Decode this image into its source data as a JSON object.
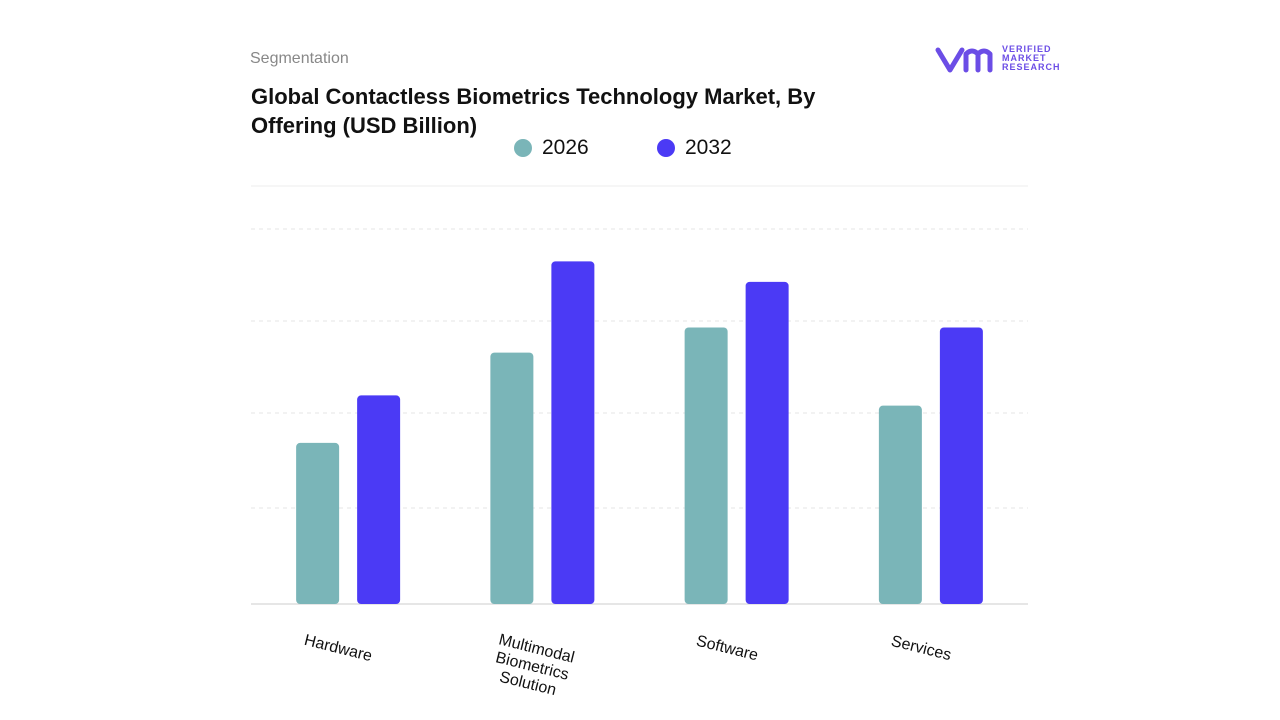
{
  "chart_data": {
    "type": "bar",
    "subtitle": "Segmentation",
    "title": "Global Contactless Biometrics Technology Market, By Offering (USD Billion)",
    "logo": "VERIFIED MARKET RESEARCH",
    "categories": [
      "Hardware",
      "Multimodal Biometrics Solution",
      "Software",
      "Services"
    ],
    "series": [
      {
        "name": "2026",
        "color": "#7ab5b8",
        "values": [
          1.73,
          2.7,
          2.97,
          2.13
        ]
      },
      {
        "name": "2032",
        "color": "#4b3af5",
        "values": [
          2.24,
          3.68,
          3.46,
          2.97
        ]
      }
    ],
    "ylim": [
      0,
      4.5
    ]
  }
}
